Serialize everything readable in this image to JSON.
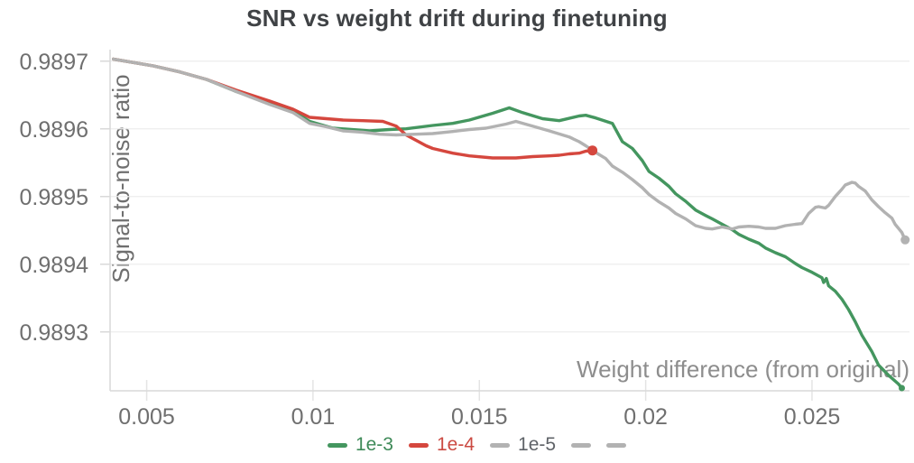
{
  "chart": {
    "title": "SNR vs weight drift during finetuning",
    "x_label": "Weight difference (from original)",
    "y_label": "Signal-to-noise ratio"
  },
  "colors": {
    "title_text": "#3f4245",
    "axis_line": "#d9d9d9",
    "gridline": "#ededed",
    "tick_label": "#6f6f6f",
    "x_axis_title": "#8d8d8d",
    "y_axis_title": "#6f6f6f",
    "green": "#44965f",
    "red": "#d5473e",
    "gray": "#b2b2b2",
    "gray_legend_text": "#5f6368"
  },
  "chart_data": {
    "type": "line",
    "title": "SNR vs weight drift during finetuning",
    "xlabel": "Weight difference (from original)",
    "ylabel": "Signal-to-noise ratio",
    "xlim": [
      0.0039,
      0.02793
    ],
    "ylim": [
      0.989213,
      0.989717
    ],
    "x_ticks": [
      0.005,
      0.01,
      0.015,
      0.02,
      0.025
    ],
    "x_tick_labels": [
      "0.005",
      "0.01",
      "0.015",
      "0.02",
      "0.025"
    ],
    "y_ticks": [
      0.9897,
      0.9896,
      0.9895,
      0.9894,
      0.9893
    ],
    "y_tick_labels": [
      "0.9897",
      "0.9896",
      "0.9895",
      "0.9894",
      "0.9893"
    ],
    "grid": "horizontal",
    "legend_position": "bottom",
    "series": [
      {
        "name": "1e-3",
        "color": "#44965f",
        "label_color": "#3e8a58",
        "line_width": 3.4,
        "end_marker_radius": 3.5,
        "points": [
          [
            0.004,
            0.989703
          ],
          [
            0.0052,
            0.989693
          ],
          [
            0.006,
            0.989684
          ],
          [
            0.0068,
            0.989673
          ],
          [
            0.0077,
            0.989655
          ],
          [
            0.0087,
            0.989639
          ],
          [
            0.0094,
            0.989627
          ],
          [
            0.0099,
            0.989611
          ],
          [
            0.0106,
            0.989601
          ],
          [
            0.0117,
            0.989597
          ],
          [
            0.0123,
            0.989599
          ],
          [
            0.0128,
            0.9896
          ],
          [
            0.0136,
            0.989605
          ],
          [
            0.0142,
            0.989608
          ],
          [
            0.0147,
            0.989613
          ],
          [
            0.0154,
            0.989623
          ],
          [
            0.0159,
            0.989631
          ],
          [
            0.0163,
            0.989624
          ],
          [
            0.0169,
            0.989615
          ],
          [
            0.0174,
            0.989612
          ],
          [
            0.018,
            0.989619
          ],
          [
            0.0182,
            0.98962
          ],
          [
            0.0185,
            0.989616
          ],
          [
            0.019,
            0.989608
          ],
          [
            0.0193,
            0.989581
          ],
          [
            0.0196,
            0.989571
          ],
          [
            0.0199,
            0.989553
          ],
          [
            0.0201,
            0.989537
          ],
          [
            0.0204,
            0.989527
          ],
          [
            0.0207,
            0.989515
          ],
          [
            0.0209,
            0.989504
          ],
          [
            0.0212,
            0.989493
          ],
          [
            0.0215,
            0.98948
          ],
          [
            0.0218,
            0.989472
          ],
          [
            0.022,
            0.989467
          ],
          [
            0.0223,
            0.989459
          ],
          [
            0.0226,
            0.989451
          ],
          [
            0.0228,
            0.989444
          ],
          [
            0.0231,
            0.989437
          ],
          [
            0.0234,
            0.989431
          ],
          [
            0.0236,
            0.989424
          ],
          [
            0.0239,
            0.989417
          ],
          [
            0.0242,
            0.989411
          ],
          [
            0.0245,
            0.989401
          ],
          [
            0.0247,
            0.989395
          ],
          [
            0.025,
            0.989388
          ],
          [
            0.0253,
            0.98938
          ],
          [
            0.02535,
            0.989373
          ],
          [
            0.02543,
            0.989379
          ],
          [
            0.0255,
            0.989368
          ],
          [
            0.0257,
            0.98936
          ],
          [
            0.0259,
            0.989348
          ],
          [
            0.0261,
            0.989333
          ],
          [
            0.0263,
            0.989315
          ],
          [
            0.0265,
            0.989295
          ],
          [
            0.0268,
            0.989271
          ],
          [
            0.027,
            0.989251
          ],
          [
            0.0273,
            0.989236
          ],
          [
            0.0276,
            0.989223
          ],
          [
            0.0277,
            0.989217
          ]
        ]
      },
      {
        "name": "1e-4",
        "color": "#d5473e",
        "label_color": "#cb4a42",
        "line_width": 3.4,
        "end_marker_radius": 5.5,
        "points": [
          [
            0.004,
            0.989703
          ],
          [
            0.0052,
            0.989693
          ],
          [
            0.006,
            0.989684
          ],
          [
            0.0068,
            0.989673
          ],
          [
            0.0077,
            0.989657
          ],
          [
            0.0087,
            0.989641
          ],
          [
            0.0094,
            0.989629
          ],
          [
            0.0099,
            0.989617
          ],
          [
            0.0104,
            0.989615
          ],
          [
            0.0109,
            0.989613
          ],
          [
            0.0115,
            0.989612
          ],
          [
            0.0121,
            0.989611
          ],
          [
            0.0125,
            0.989604
          ],
          [
            0.0128,
            0.989591
          ],
          [
            0.0134,
            0.989575
          ],
          [
            0.0136,
            0.989571
          ],
          [
            0.0142,
            0.989564
          ],
          [
            0.0147,
            0.98956
          ],
          [
            0.0154,
            0.989557
          ],
          [
            0.0158,
            0.989557
          ],
          [
            0.0161,
            0.989557
          ],
          [
            0.0166,
            0.989559
          ],
          [
            0.0171,
            0.98956
          ],
          [
            0.0174,
            0.989561
          ],
          [
            0.0177,
            0.989563
          ],
          [
            0.018,
            0.989564
          ],
          [
            0.0182,
            0.989567
          ],
          [
            0.0184,
            0.989568
          ]
        ]
      },
      {
        "name": "1e-5",
        "color": "#b2b2b2",
        "label_color": "#5f6368",
        "line_width": 3.4,
        "end_marker_radius": 5,
        "points": [
          [
            0.004,
            0.989703
          ],
          [
            0.0052,
            0.989693
          ],
          [
            0.006,
            0.989684
          ],
          [
            0.0068,
            0.989673
          ],
          [
            0.0077,
            0.989655
          ],
          [
            0.0087,
            0.989636
          ],
          [
            0.0094,
            0.989624
          ],
          [
            0.0099,
            0.989608
          ],
          [
            0.0104,
            0.989603
          ],
          [
            0.0109,
            0.989597
          ],
          [
            0.0115,
            0.989595
          ],
          [
            0.012,
            0.989592
          ],
          [
            0.0125,
            0.989591
          ],
          [
            0.0131,
            0.989592
          ],
          [
            0.0136,
            0.989593
          ],
          [
            0.0142,
            0.989596
          ],
          [
            0.0147,
            0.989599
          ],
          [
            0.0152,
            0.989601
          ],
          [
            0.0158,
            0.989607
          ],
          [
            0.0161,
            0.989611
          ],
          [
            0.0166,
            0.989604
          ],
          [
            0.0171,
            0.989597
          ],
          [
            0.0177,
            0.989588
          ],
          [
            0.018,
            0.989581
          ],
          [
            0.0182,
            0.989575
          ],
          [
            0.0185,
            0.989565
          ],
          [
            0.0188,
            0.989556
          ],
          [
            0.019,
            0.989545
          ],
          [
            0.0193,
            0.989536
          ],
          [
            0.0196,
            0.989525
          ],
          [
            0.0199,
            0.989513
          ],
          [
            0.0201,
            0.989503
          ],
          [
            0.0204,
            0.989492
          ],
          [
            0.0207,
            0.989483
          ],
          [
            0.0209,
            0.989475
          ],
          [
            0.0212,
            0.989467
          ],
          [
            0.0215,
            0.989457
          ],
          [
            0.0218,
            0.989453
          ],
          [
            0.022,
            0.989452
          ],
          [
            0.0223,
            0.989455
          ],
          [
            0.0226,
            0.989452
          ],
          [
            0.0228,
            0.989455
          ],
          [
            0.0231,
            0.989456
          ],
          [
            0.0234,
            0.989455
          ],
          [
            0.0236,
            0.989453
          ],
          [
            0.0239,
            0.989453
          ],
          [
            0.0242,
            0.989457
          ],
          [
            0.0245,
            0.989459
          ],
          [
            0.0247,
            0.98946
          ],
          [
            0.0249,
            0.989475
          ],
          [
            0.0251,
            0.989484
          ],
          [
            0.0252,
            0.989485
          ],
          [
            0.0254,
            0.989483
          ],
          [
            0.0255,
            0.989487
          ],
          [
            0.0257,
            0.9895
          ],
          [
            0.0259,
            0.989511
          ],
          [
            0.026,
            0.989517
          ],
          [
            0.0262,
            0.989521
          ],
          [
            0.0263,
            0.98952
          ],
          [
            0.0264,
            0.989515
          ],
          [
            0.0266,
            0.989508
          ],
          [
            0.0268,
            0.989495
          ],
          [
            0.027,
            0.989485
          ],
          [
            0.0272,
            0.989476
          ],
          [
            0.0274,
            0.989468
          ],
          [
            0.0275,
            0.989459
          ],
          [
            0.0277,
            0.989447
          ],
          [
            0.0278,
            0.989436
          ]
        ]
      },
      {
        "name": "",
        "color": "#b2b2b2",
        "label_color": "#5f6368",
        "line_width": 3.4,
        "end_marker_radius": 0,
        "points": []
      },
      {
        "name": "",
        "color": "#b2b2b2",
        "label_color": "#5f6368",
        "line_width": 3.4,
        "end_marker_radius": 0,
        "points": []
      }
    ]
  }
}
